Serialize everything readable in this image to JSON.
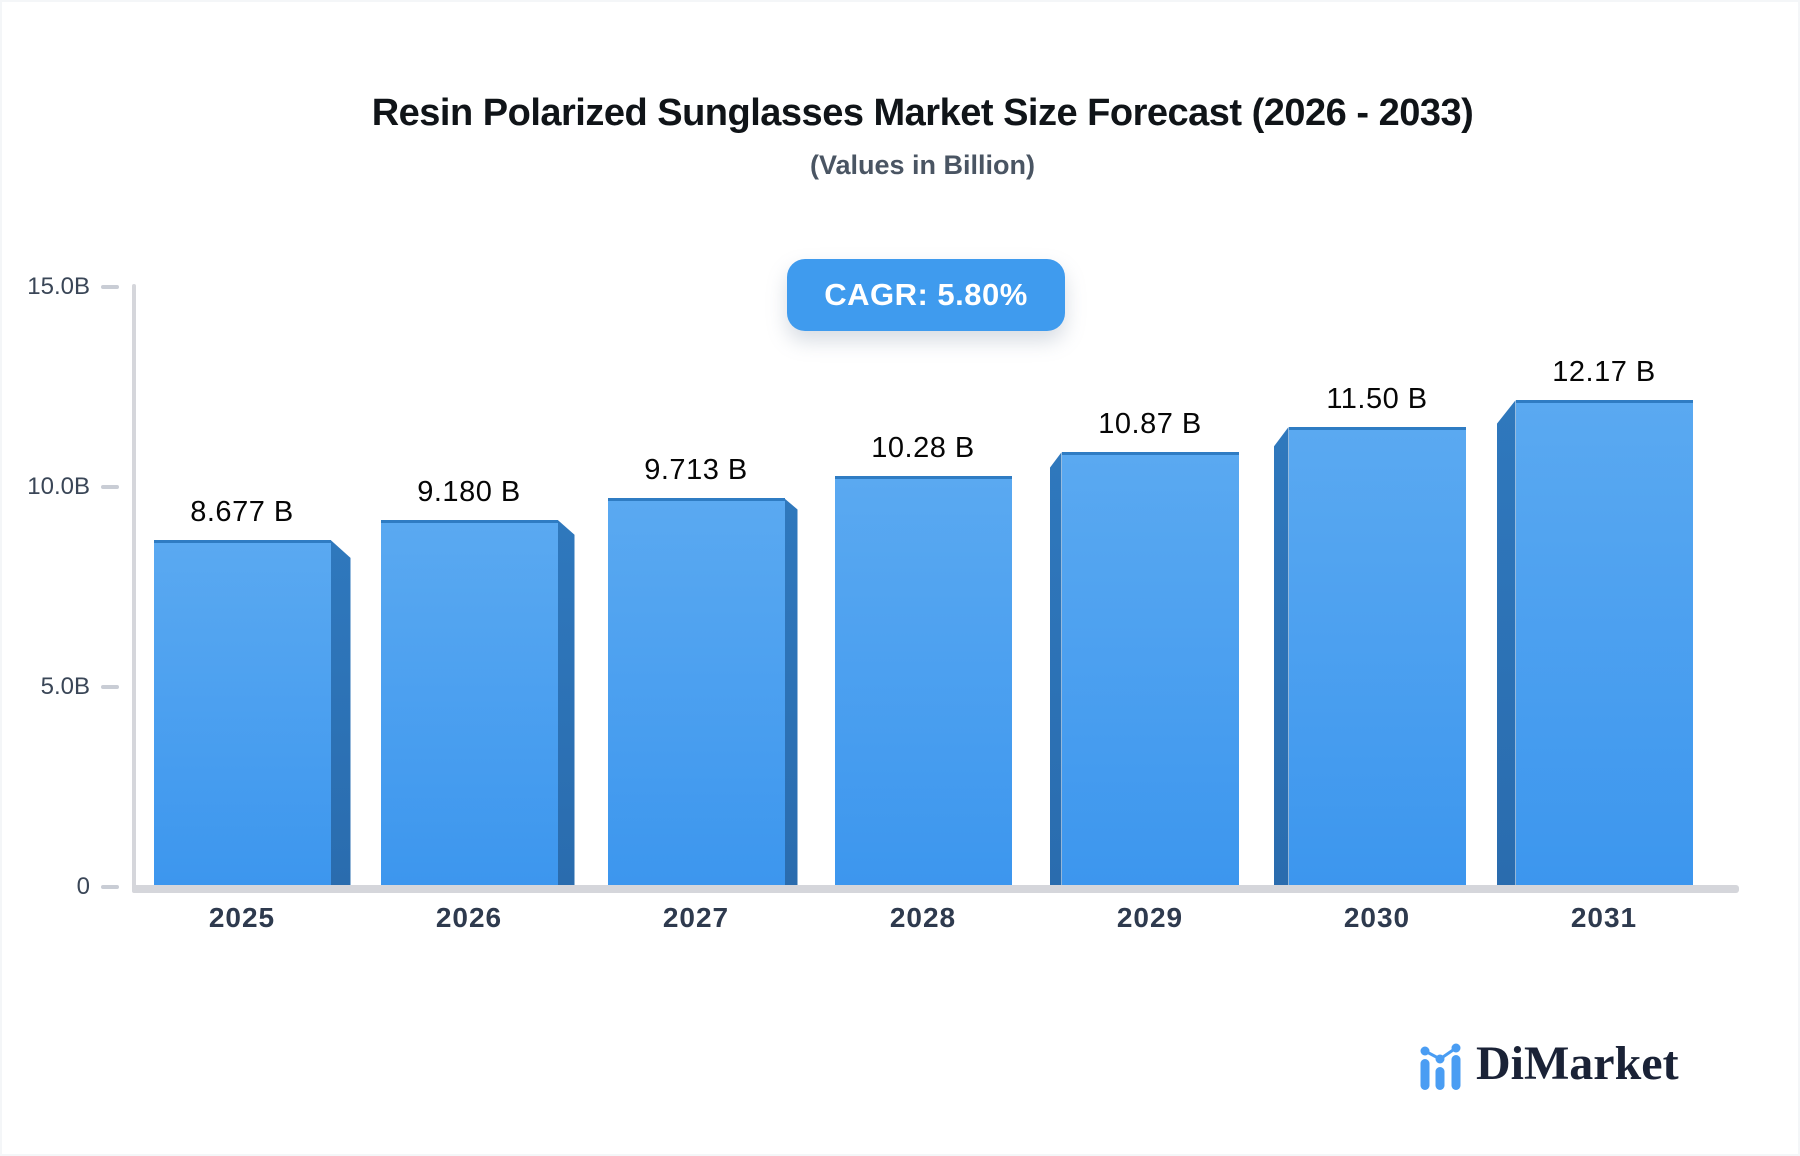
{
  "chart_data": {
    "type": "bar",
    "title": "Resin Polarized Sunglasses Market Size Forecast (2026 - 2033)",
    "subtitle": "(Values in Billion)",
    "cagr_badge": "CAGR: 5.80%",
    "categories": [
      "2025",
      "2026",
      "2027",
      "2028",
      "2029",
      "2030",
      "2031"
    ],
    "values": [
      8.677,
      9.18,
      9.713,
      10.28,
      10.87,
      11.5,
      12.17
    ],
    "value_labels": [
      "8.677 B",
      "9.180 B",
      "9.713 B",
      "10.28 B",
      "10.87 B",
      "11.50 B",
      "12.17 B"
    ],
    "y_ticks": {
      "labels": [
        "0",
        "5.0B",
        "10.0B",
        "15.0B"
      ],
      "values": [
        0,
        5,
        10,
        15
      ]
    },
    "ylim": [
      0,
      15
    ],
    "xlabel": "",
    "ylabel": "",
    "grid": false,
    "legend": false,
    "bar_style": "3d-extruded"
  },
  "logo": {
    "text": "DiMarket"
  },
  "colors": {
    "background": "#ffffff",
    "bar_face_top": "#5aa9f1",
    "bar_face_bottom": "#3c96ee",
    "bar_top_edge": "#2f7cc3",
    "bar_side_top": "#2f78bd",
    "bar_side_bottom": "#2a6cae",
    "badge_bg": "#3f9bee",
    "badge_text": "#ffffff",
    "axis_line": "#d5d6db",
    "tick_mark": "#c9cdd5",
    "y_label": "#3a4657",
    "x_label": "#2e3a4e",
    "value_label": "#060606",
    "title": "#101418",
    "subtitle": "#4a5563",
    "logo_blue": "#4a9df3",
    "logo_text": "#1a2236"
  }
}
